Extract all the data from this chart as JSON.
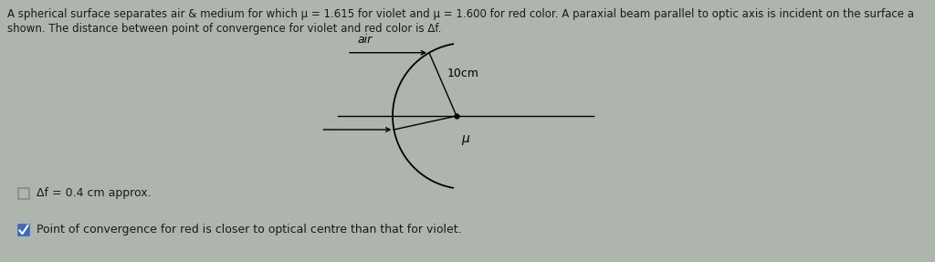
{
  "title_line1": "A spherical surface separates air & medium for which μ = 1.615 for violet and μ = 1.600 for red color. A paraxial beam parallel to optic axis is incident on the surface a",
  "title_line2": "shown. The distance between point of convergence for violet and red color is Δf.",
  "option1_text": "Δf = 0.4 cm approx.",
  "option2_text": "Point of convergence for red is closer to optical centre than that for violet.",
  "option1_checked": false,
  "option2_checked": true,
  "bg_color": "#adb5ad",
  "text_color": "#1a1a1a",
  "diagram_label_air": "air",
  "diagram_label_radius": "10cm",
  "diagram_label_mu": "μ",
  "title_fontsize": 8.5,
  "option_fontsize": 9.0,
  "checkbox_color_checked": "#3a6abf",
  "checkbox_color_unchecked": "#888888"
}
